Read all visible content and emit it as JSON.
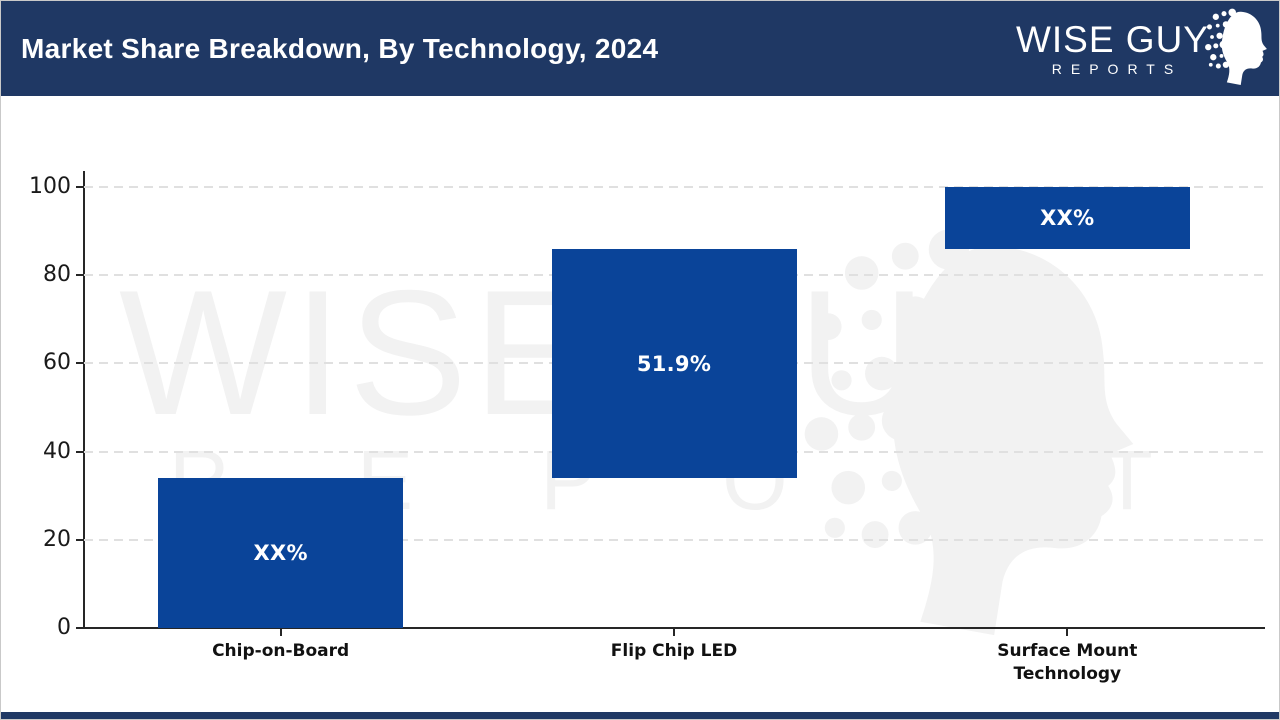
{
  "header": {
    "title": "Market Share Breakdown, By Technology, 2024",
    "logo": {
      "name": "WISE GUY",
      "sub": "REPORTS"
    }
  },
  "watermark": {
    "name": "WISE GUY",
    "sub": "R E P O R T S"
  },
  "chart_data": {
    "type": "bar",
    "subtype": "floating-waterfall",
    "title": "Market Share Breakdown, By Technology, 2024",
    "categories": [
      "Chip-on-Board",
      "Flip Chip LED",
      "Surface Mount Technology"
    ],
    "bars": [
      {
        "category": "Chip-on-Board",
        "start": 0,
        "end": 34,
        "label": "XX%"
      },
      {
        "category": "Flip Chip LED",
        "start": 34,
        "end": 85.9,
        "label": "51.9%"
      },
      {
        "category": "Surface Mount Technology",
        "start": 85.9,
        "end": 100,
        "label": "XX%"
      }
    ],
    "yticks": [
      0,
      20,
      40,
      60,
      80,
      100
    ],
    "ylim": [
      0,
      100
    ],
    "xlabel": "",
    "ylabel": "",
    "grid": "horizontal-dashed",
    "legend": "none",
    "bar_color": "#0a4499",
    "value_label_color": "#ffffff"
  },
  "colors": {
    "header_bg": "#1f3864",
    "footer_bg": "#1f3864",
    "bar": "#0a4499",
    "axis": "#262626",
    "grid": "#e0e0e0",
    "watermark": "#f2f2f2",
    "page_border": "#c9c9c9"
  }
}
